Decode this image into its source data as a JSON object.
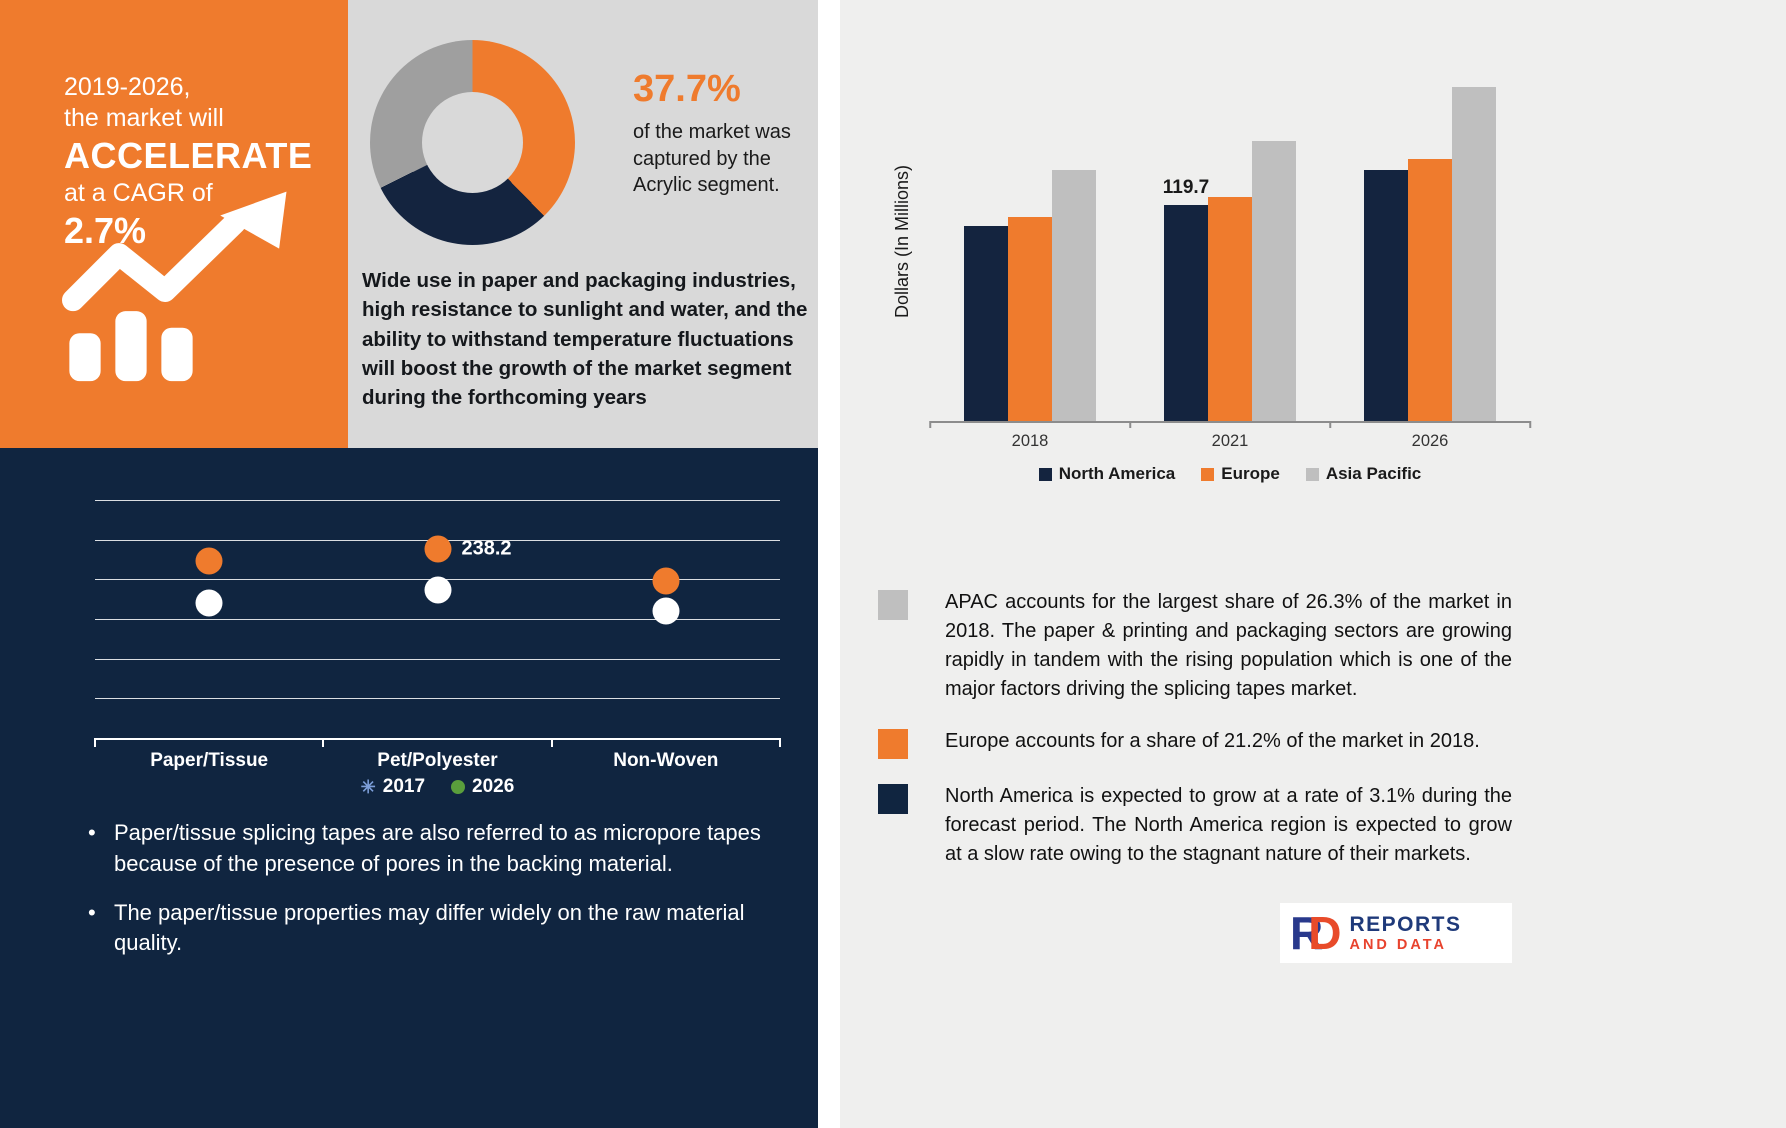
{
  "colors": {
    "orange": "#ef7b2d",
    "navy": "#102540",
    "panel_gray": "#d9d9d9",
    "right_bg": "#efefee",
    "bar_gray": "#bfbfbf",
    "white": "#ffffff",
    "legend_2017_blue": "#7c9ed9",
    "legend_2026_green": "#5a9e3c"
  },
  "cagr_panel": {
    "period": "2019-2026,",
    "line2": "the market will",
    "accelerate": "ACCELERATE",
    "line4": "at a CAGR of",
    "value": "2.7%"
  },
  "acrylic_panel": {
    "stat": "37.7%",
    "caption": "of the market was captured by the Acrylic segment.",
    "body": "Wide use in paper and packaging industries, high resistance to sunlight and water, and the ability to withstand temperature fluctuations will boost the growth of the market segment during the forthcoming years"
  },
  "materials_panel": {
    "bullets": [
      "Paper/tissue splicing tapes are also referred to as micropore tapes because of the presence of pores in the backing material.",
      "The paper/tissue properties may differ widely on the raw material quality."
    ]
  },
  "region_notes": [
    {
      "color": "#bfbfbf",
      "text": "APAC accounts for the largest share of 26.3% of the market in 2018. The paper & printing and packaging sectors are growing rapidly in tandem with the rising population which is one of the major factors driving the splicing tapes market."
    },
    {
      "color": "#ef7b2d",
      "text": "Europe accounts for a share of 21.2% of the market in 2018."
    },
    {
      "color": "#102540",
      "text": "North America is expected to grow at a rate of 3.1% during the forecast period. The North America region is expected to grow at a slow rate owing to the stagnant nature of their markets."
    }
  ],
  "logo": {
    "mark_r": "R",
    "mark_d": "D",
    "name_top": "REPORTS",
    "name_bottom": "AND DATA"
  },
  "chart_data": [
    {
      "id": "acrylic_donut",
      "type": "pie",
      "donut": true,
      "slices": [
        {
          "label": "Acrylic",
          "value": 37.7,
          "color": "#ef7b2d"
        },
        {
          "label": "unlabeled-dark",
          "value": 30.0,
          "color": "#14243f"
        },
        {
          "label": "unlabeled-gray",
          "value": 32.3,
          "color": "#9f9f9f"
        }
      ]
    },
    {
      "id": "material_dot_plot",
      "type": "scatter",
      "categories": [
        "Paper/Tissue",
        "Pet/Polyester",
        "Non-Woven"
      ],
      "series": [
        {
          "name": "2017",
          "marker_color": "#ef7b2d",
          "values": [
            223,
            238.2,
            198
          ]
        },
        {
          "name": "2026",
          "marker_color": "#ffffff",
          "values": [
            170,
            186,
            160
          ]
        }
      ],
      "data_labels": [
        {
          "series": "2017",
          "category": "Pet/Polyester",
          "text": "238.2"
        }
      ],
      "ylim": [
        0,
        300
      ],
      "gridlines": [
        300,
        250,
        200,
        150,
        100,
        50
      ],
      "legend": [
        {
          "label": "2017",
          "marker": "asterisk",
          "marker_color": "#7c9ed9"
        },
        {
          "label": "2026",
          "marker": "circle",
          "marker_color": "#5a9e3c"
        }
      ],
      "legend_position": "bottom"
    },
    {
      "id": "regional_bar_chart",
      "type": "bar",
      "ylabel": "Dollars (In Millions)",
      "categories": [
        "2018",
        "2021",
        "2026"
      ],
      "series": [
        {
          "name": "North America",
          "color": "#14243f",
          "values": [
            108,
            119.7,
            139
          ]
        },
        {
          "name": "Europe",
          "color": "#ef7b2d",
          "values": [
            113,
            124,
            145
          ]
        },
        {
          "name": "Asia Pacific",
          "color": "#bfbfbf",
          "values": [
            139,
            155,
            185
          ]
        }
      ],
      "data_labels": [
        {
          "series": "North America",
          "category": "2021",
          "text": "119.7"
        }
      ],
      "ylim": [
        0,
        200
      ],
      "legend_position": "bottom"
    }
  ]
}
